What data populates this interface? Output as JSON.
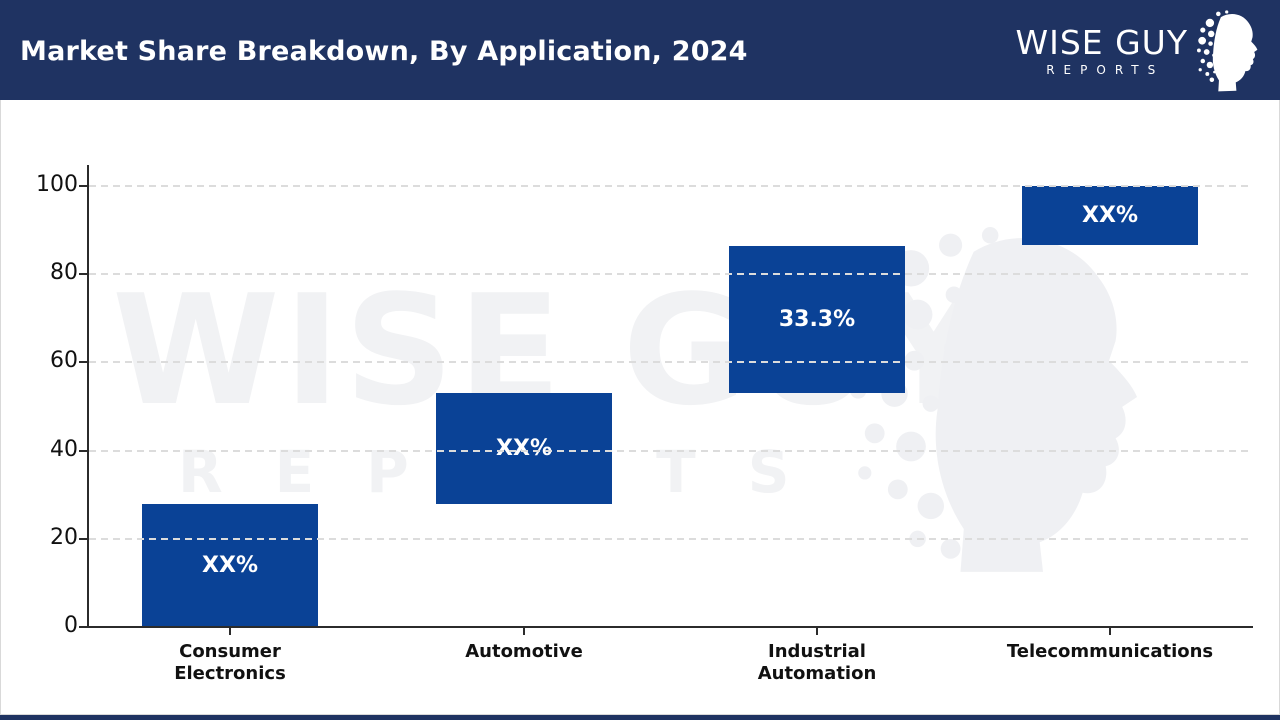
{
  "header": {
    "title": "Market Share Breakdown, By Application, 2024",
    "logo": {
      "line1": "WISE GUY",
      "line2": "REPORTS"
    }
  },
  "watermark": {
    "line1": "WISE GUY",
    "line2": "REPORTS"
  },
  "chart_data": {
    "type": "bar",
    "subtype": "floating-waterfall",
    "title": "Market Share Breakdown, By Application, 2024",
    "xlabel": "",
    "ylabel": "",
    "ylim": [
      0,
      105
    ],
    "y_ticks": [
      0,
      20,
      40,
      60,
      80,
      100
    ],
    "grid": "dashed-horizontal",
    "legend": "none",
    "bar_color": "#0a4296",
    "bar_label_color": "#ffffff",
    "categories": [
      "Consumer Electronics",
      "Automotive",
      "Industrial Automation",
      "Telecommunications"
    ],
    "category_lines": [
      [
        "Consumer",
        "Electronics"
      ],
      [
        "Automotive"
      ],
      [
        "Industrial",
        "Automation"
      ],
      [
        "Telecommunications"
      ]
    ],
    "segments": [
      {
        "category": "Consumer Electronics",
        "start": 0,
        "end": 28,
        "label": "XX%"
      },
      {
        "category": "Automotive",
        "start": 28,
        "end": 53,
        "label": "XX%"
      },
      {
        "category": "Industrial Automation",
        "start": 53,
        "end": 86.3,
        "label": "33.3%"
      },
      {
        "category": "Telecommunications",
        "start": 86.6,
        "end": 100,
        "label": "XX%"
      }
    ]
  },
  "colors": {
    "header_bg": "#1f3362",
    "bar": "#0a4296",
    "grid": "#dcdcdc",
    "axis": "#2b2b2b",
    "watermark": "#f1f2f4"
  }
}
